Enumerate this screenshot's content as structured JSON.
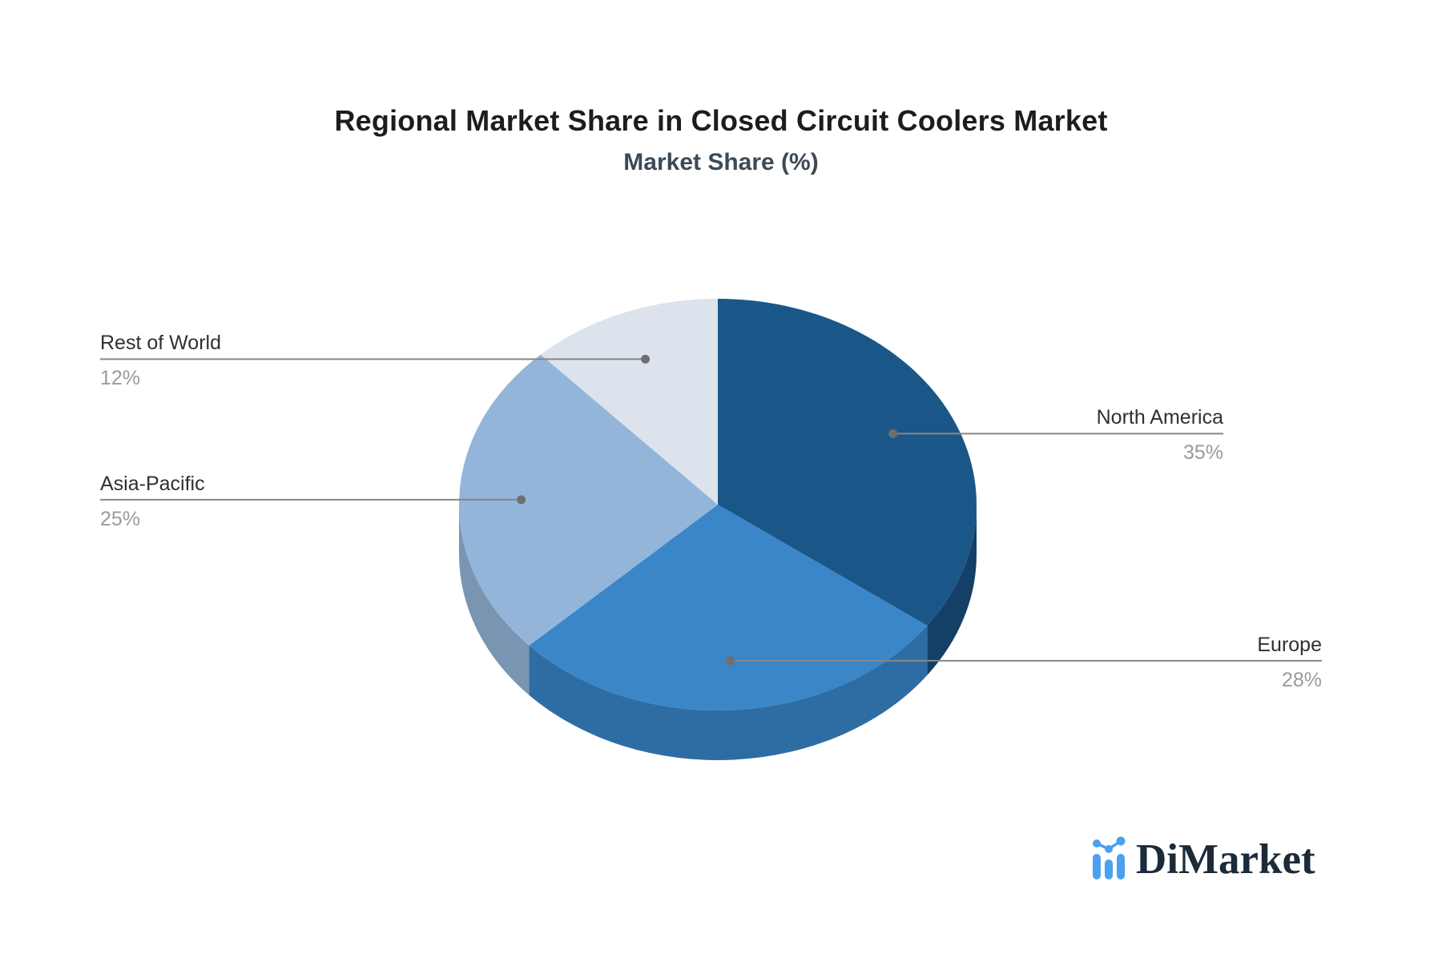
{
  "chart_data": {
    "type": "pie",
    "style": "3d",
    "title": "Regional Market Share in Closed Circuit Coolers Market",
    "subtitle": "Market Share (%)",
    "unit": "%",
    "start_angle_deg": -90,
    "direction": "clockwise",
    "legend": "none",
    "background": "#ffffff",
    "categories": [
      "North America",
      "Europe",
      "Asia-Pacific",
      "Rest of World"
    ],
    "values": [
      35,
      28,
      25,
      12
    ],
    "series": [
      {
        "name": "North America",
        "value": 35,
        "label": "35%",
        "color": "#1a5788",
        "side_color": "#143f66",
        "label_side": "right"
      },
      {
        "name": "Europe",
        "value": 28,
        "label": "28%",
        "color": "#3a86c8",
        "side_color": "#2e6da4",
        "label_side": "right"
      },
      {
        "name": "Asia-Pacific",
        "value": 25,
        "label": "25%",
        "color": "#93b5d9",
        "side_color": "#7a95b2",
        "label_side": "left"
      },
      {
        "name": "Rest of World",
        "value": 12,
        "label": "12%",
        "color": "#dce3ed",
        "side_color": "#b9c6d6",
        "label_side": "left"
      }
    ],
    "label_line_color": "#878787",
    "label_dot_color": "#6f6f6f",
    "label_name_color": "#303030",
    "label_value_color": "#9a9a9a",
    "title_color": "#1d1d1d",
    "subtitle_color": "#3c4a57"
  },
  "branding": {
    "logo_text": "DiMarket",
    "logo_icon": "bar-line-chart-icon",
    "logo_icon_color": "#4ba1f0",
    "logo_text_color": "#1c2b3a"
  }
}
